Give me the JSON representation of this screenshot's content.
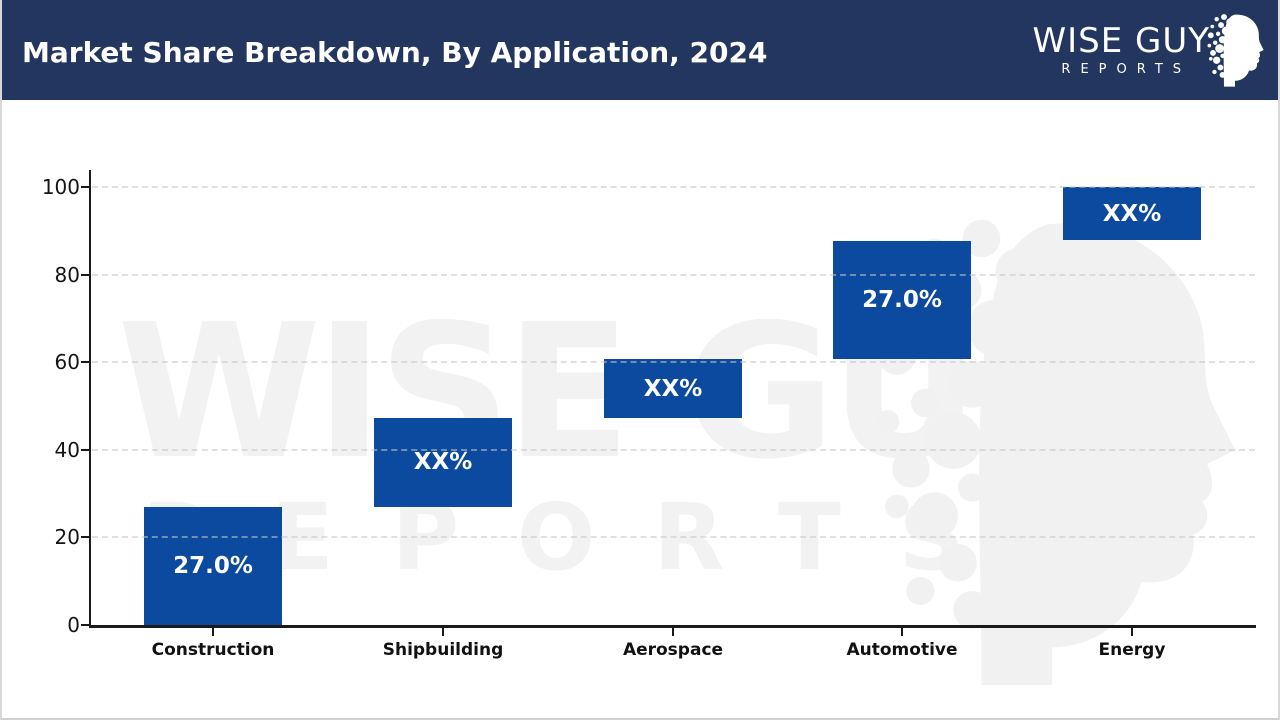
{
  "header": {
    "title": "Market Share Breakdown, By Application, 2024",
    "logo": {
      "line1": "WISE GUY",
      "line2": "REPORTS"
    }
  },
  "watermark": {
    "line1": "WISE GUY",
    "line2": "REPORTS"
  },
  "chart_data": {
    "type": "bar",
    "subtype": "floating-waterfall",
    "title": "Market Share Breakdown, By Application, 2024",
    "xlabel": "",
    "ylabel": "",
    "ylim": [
      0,
      100
    ],
    "yticks": [
      0,
      20,
      40,
      60,
      80,
      100
    ],
    "grid": "horizontal-dashed",
    "legend": "none",
    "categories": [
      "Construction",
      "Shipbuilding",
      "Aerospace",
      "Automotive",
      "Energy"
    ],
    "segments": [
      {
        "category": "Construction",
        "start": 0,
        "end": 27,
        "label": "27.0%"
      },
      {
        "category": "Shipbuilding",
        "start": 27,
        "end": 47.2,
        "label": "XX%"
      },
      {
        "category": "Aerospace",
        "start": 47.2,
        "end": 60.7,
        "label": "XX%"
      },
      {
        "category": "Automotive",
        "start": 60.7,
        "end": 87.7,
        "label": "27.0%"
      },
      {
        "category": "Energy",
        "start": 87.8,
        "end": 100,
        "label": "XX%"
      }
    ],
    "bar_color": "#0b4a9e",
    "bar_label_color": "#ffffff"
  },
  "colors": {
    "header_navy": "#22365f",
    "bar_blue": "#0b4a9e",
    "watermark_gray": "#f2f2f3",
    "spine": "#1a1a1a"
  }
}
